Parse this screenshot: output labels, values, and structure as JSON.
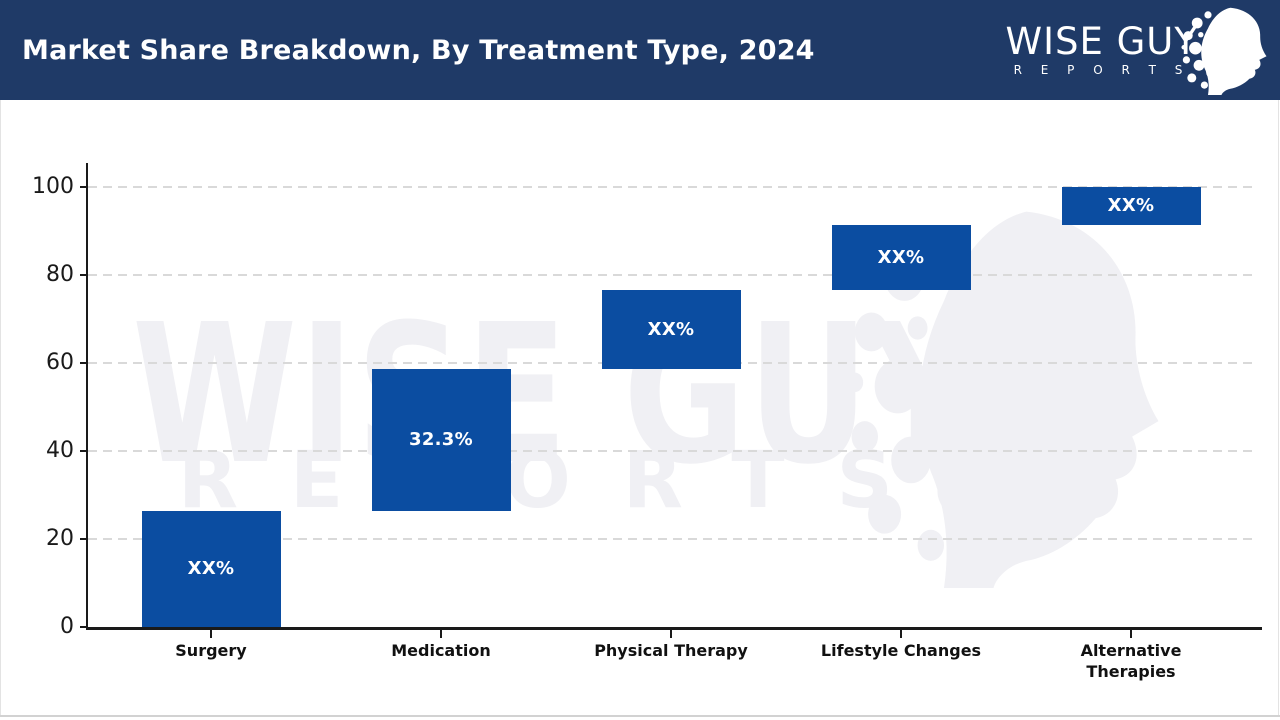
{
  "header": {
    "title": "Market Share Breakdown, By Treatment Type, 2024",
    "logo": {
      "line1": "WISE GUY",
      "line2": "R E P O R T S"
    }
  },
  "watermark": {
    "line1": "WISE GUY",
    "line2": "REPORTS"
  },
  "colors": {
    "header_bg": "#1f3a67",
    "bar_blue": "#0b4da1",
    "grid_gray": "#d9d9d9",
    "axis_black": "#1a1a1a",
    "watermark_gray": "#f0f0f4",
    "bar_label_white": "#ffffff"
  },
  "chart_data": {
    "type": "bar",
    "subtype": "floating-waterfall",
    "title": "Market Share Breakdown, By Treatment Type, 2024",
    "categories": [
      "Surgery",
      "Medication",
      "Physical Therapy",
      "Lifestyle Changes",
      "Alternative Therapies"
    ],
    "segments": [
      {
        "category": "Surgery",
        "start": 0,
        "end": 26.4,
        "label": "XX%"
      },
      {
        "category": "Medication",
        "start": 26.4,
        "end": 58.7,
        "label": "32.3%"
      },
      {
        "category": "Physical Therapy",
        "start": 58.7,
        "end": 76.6,
        "label": "XX%"
      },
      {
        "category": "Lifestyle Changes",
        "start": 76.6,
        "end": 91.4,
        "label": "XX%"
      },
      {
        "category": "Alternative Therapies",
        "start": 91.4,
        "end": 100,
        "label": "XX%"
      }
    ],
    "ylim": [
      0,
      100
    ],
    "yticks": [
      0,
      20,
      40,
      60,
      80,
      100
    ],
    "xlabel": "",
    "ylabel": "",
    "grid": "horizontal-dashed",
    "legend": "none"
  }
}
